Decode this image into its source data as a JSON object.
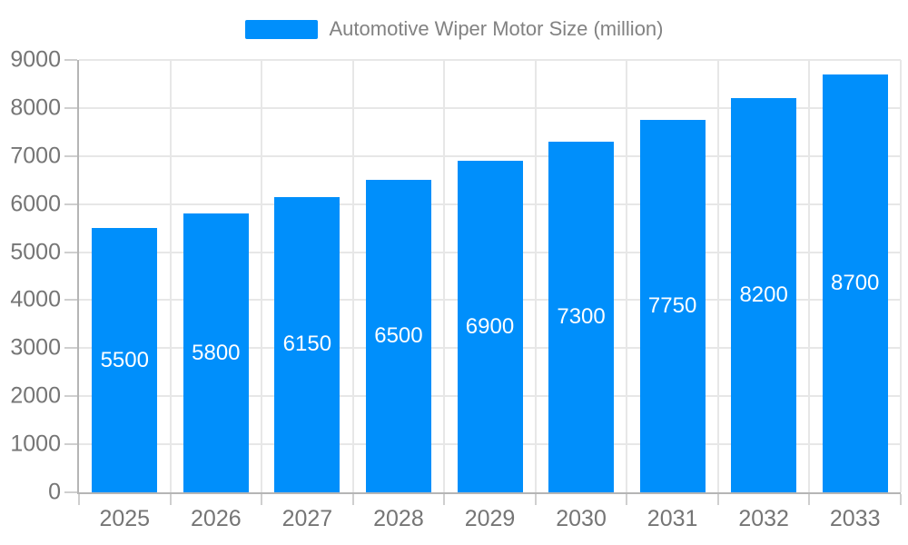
{
  "chart_data": {
    "type": "bar",
    "title": "Automotive Wiper Motor Size (million)",
    "series": [
      {
        "name": "Automotive Wiper Motor Size (million)",
        "values": [
          5500,
          5800,
          6150,
          6500,
          6900,
          7300,
          7750,
          8200,
          8700
        ]
      }
    ],
    "categories": [
      "2025",
      "2026",
      "2027",
      "2028",
      "2029",
      "2030",
      "2031",
      "2032",
      "2033"
    ],
    "xlabel": "",
    "ylabel": "",
    "ylim": [
      0,
      9000
    ],
    "ytick_step": 1000,
    "yticks": [
      0,
      1000,
      2000,
      3000,
      4000,
      5000,
      6000,
      7000,
      8000,
      9000
    ],
    "grid": "horizontal and vertical light gray gridlines",
    "legend_position": "top-center",
    "data_labels": "white values centered inside bars",
    "colors": {
      "bar": "#008FFB",
      "bar_label": "#ffffff",
      "axis_text": "#757575",
      "title_text": "#828282",
      "gridline": "#e7e7e7",
      "axis_line": "#b5b5b5",
      "tick": "#cfcfcf",
      "background": "#ffffff"
    }
  }
}
